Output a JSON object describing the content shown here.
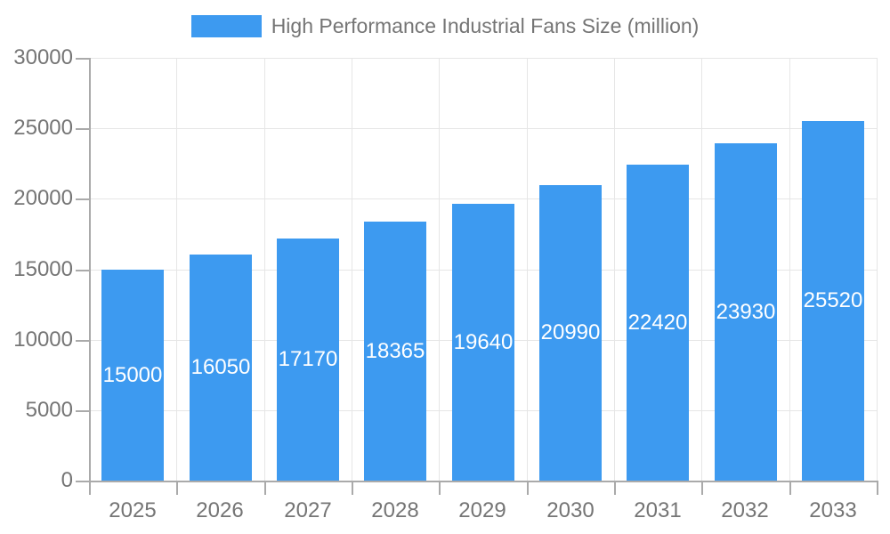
{
  "chart_data": {
    "type": "bar",
    "title": "High Performance Industrial Fans Size (million)",
    "categories": [
      "2025",
      "2026",
      "2027",
      "2028",
      "2029",
      "2030",
      "2031",
      "2032",
      "2033"
    ],
    "values": [
      15000,
      16050,
      17170,
      18365,
      19640,
      20990,
      22420,
      23930,
      25520
    ],
    "series": [
      {
        "name": "High Performance Industrial Fans Size (million)",
        "values": [
          15000,
          16050,
          17170,
          18365,
          19640,
          20990,
          22420,
          23930,
          25520
        ]
      }
    ],
    "xlabel": "",
    "ylabel": "",
    "ylim": [
      0,
      30000
    ],
    "ytick_step": 5000,
    "ytick_labels": [
      "0",
      "5000",
      "10000",
      "15000",
      "20000",
      "25000",
      "30000"
    ],
    "grid": true,
    "legend_position": "top",
    "value_labels": "centered-inside-bars",
    "colors": {
      "bar_fill": "#3d9af0",
      "bar_value_text": "#ffffff",
      "axis_text": "#757575",
      "axis_line": "#aaaaaa",
      "gridline": "#e6e6e6",
      "background": "#ffffff"
    }
  },
  "legend": {
    "label": "High Performance Industrial Fans Size (million)"
  }
}
